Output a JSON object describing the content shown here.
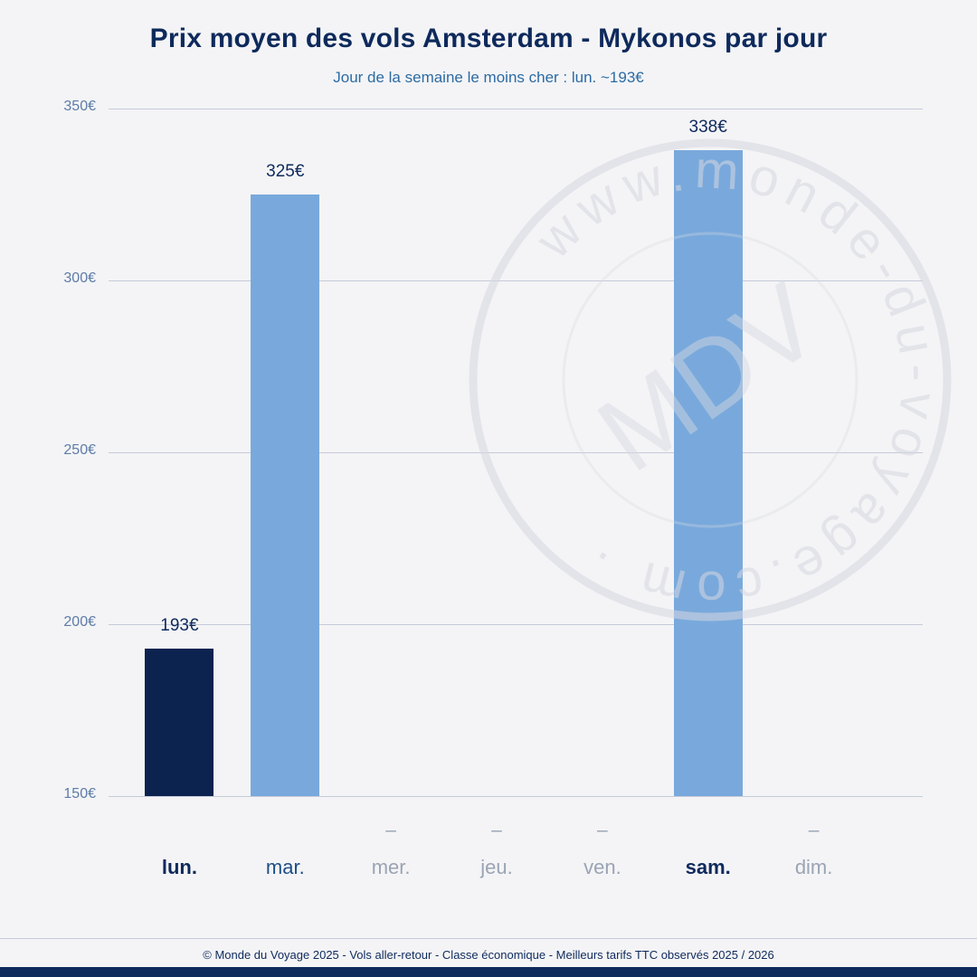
{
  "header": {
    "title": "Prix moyen des vols Amsterdam - Mykonos par jour",
    "subtitle": "Jour de la semaine le moins cher : lun. ~193€"
  },
  "chart_data": {
    "type": "bar",
    "categories": [
      "lun.",
      "mar.",
      "mer.",
      "jeu.",
      "ven.",
      "sam.",
      "dim."
    ],
    "values": [
      193,
      325,
      null,
      null,
      null,
      338,
      null
    ],
    "value_labels": [
      "193€",
      "325€",
      "–",
      "–",
      "–",
      "338€",
      "–"
    ],
    "highlight_index": 0,
    "yticks": [
      350,
      300,
      250,
      200,
      150
    ],
    "ytick_labels": [
      "350€",
      "300€",
      "250€",
      "200€",
      "150€"
    ],
    "ylim": [
      150,
      350
    ],
    "currency": "€",
    "no_data_marker": "–",
    "grid": "on",
    "legend": "none",
    "title": "Prix moyen des vols Amsterdam - Mykonos par jour",
    "xlabel": "",
    "ylabel": ""
  },
  "watermark": {
    "ring_text": "www.monde-du-voyage.com ·",
    "center_text": "MDV"
  },
  "footer": {
    "text": "© Monde du Voyage 2025 - Vols aller-retour - Classe économique - Meilleurs tarifs TTC observés 2025 / 2026"
  },
  "colors": {
    "background": "#f4f4f6",
    "title": "#0e2a5c",
    "subtitle": "#2c6ba3",
    "grid": "#c6cbd9",
    "tick_label": "#5d7ca8",
    "bar": "#79a9dc",
    "bar_highlight": "#0c2350",
    "value_label": "#0e2a5c",
    "day_label_strong": "#0e2a5c",
    "day_label_data": "#1d4f86",
    "day_label_muted": "#9aa4b4",
    "watermark": "#d6d8e1",
    "footer_text": "#0e2a5c",
    "footer_bar": "#0e2a5c"
  }
}
